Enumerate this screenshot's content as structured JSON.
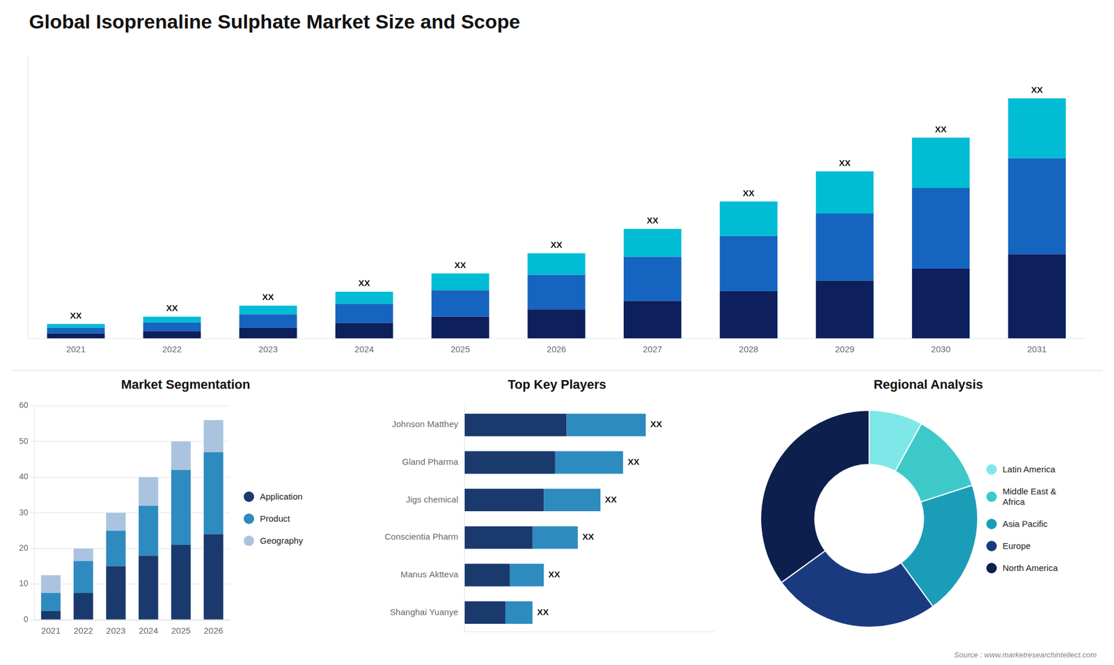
{
  "title": "Global Isoprenaline Sulphate Market Size and Scope",
  "annotations": [
    "Source : www.marketresearchintellect.com"
  ],
  "chart_data": [
    {
      "type": "bar",
      "stacked": true,
      "categories": [
        "2021",
        "2022",
        "2023",
        "2024",
        "2025",
        "2026",
        "2027",
        "2028",
        "2029",
        "2030",
        "2031"
      ],
      "series": [
        {
          "color": "#0d1f5c",
          "values": [
            1.0,
            1.5,
            2.2,
            3.2,
            4.5,
            6.0,
            7.8,
            9.8,
            12.0,
            14.5,
            17.5
          ]
        },
        {
          "color": "#1565c0",
          "values": [
            1.2,
            1.8,
            2.8,
            4.0,
            5.5,
            7.2,
            9.2,
            11.5,
            14.0,
            16.8,
            20.0
          ]
        },
        {
          "color": "#00bcd4",
          "values": [
            0.8,
            1.2,
            1.8,
            2.5,
            3.5,
            4.5,
            5.8,
            7.2,
            8.8,
            10.5,
            12.5
          ]
        }
      ],
      "ylim": [
        0,
        59
      ],
      "yticks": [],
      "tick_labels": "x",
      "grid": false,
      "annotations": [
        {
          "text": "XX",
          "x": "2021"
        },
        {
          "text": "XX",
          "x": "2022"
        },
        {
          "text": "XX",
          "x": "2023"
        },
        {
          "text": "XX",
          "x": "2024"
        },
        {
          "text": "XX",
          "x": "2025"
        },
        {
          "text": "XX",
          "x": "2026"
        },
        {
          "text": "XX",
          "x": "2027"
        },
        {
          "text": "XX",
          "x": "2028"
        },
        {
          "text": "XX",
          "x": "2029"
        },
        {
          "text": "XX",
          "x": "2030"
        },
        {
          "text": "XX",
          "x": "2031"
        }
      ]
    },
    {
      "type": "bar",
      "title": "Market Segmentation",
      "stacked": true,
      "categories": [
        "2021",
        "2022",
        "2023",
        "2024",
        "2025",
        "2026"
      ],
      "series": [
        {
          "name": "Application",
          "color": "#1a3a6e",
          "values": [
            2.5,
            7.5,
            15,
            18,
            21,
            24
          ]
        },
        {
          "name": "Product",
          "color": "#2e8bc0",
          "values": [
            5,
            9,
            10,
            14,
            21,
            23
          ]
        },
        {
          "name": "Geography",
          "color": "#aac4e0",
          "values": [
            5,
            3.5,
            5,
            8,
            8,
            9
          ]
        }
      ],
      "ylim": [
        0,
        60
      ],
      "yticks": [
        0,
        10,
        20,
        30,
        40,
        50,
        60
      ],
      "grid": true,
      "legend": "right"
    },
    {
      "type": "bar",
      "title": "Top Key Players",
      "orientation": "horizontal",
      "stacked": true,
      "categories": [
        "Johnson Matthey",
        "Gland Pharma",
        "Jigs chemical",
        "Conscientia Pharm",
        "Manus Aktteva",
        "Shanghai Yuanye"
      ],
      "series": [
        {
          "color": "#1a3a6e",
          "values": [
            4.5,
            4.0,
            3.5,
            3.0,
            2.0,
            1.8
          ]
        },
        {
          "color": "#2e8bc0",
          "values": [
            3.5,
            3.0,
            2.5,
            2.0,
            1.5,
            1.2
          ]
        }
      ],
      "xlim": [
        0,
        11
      ],
      "xticks": [],
      "tick_labels": "y",
      "grid": false,
      "annotations": [
        {
          "text": "XX",
          "y": "Johnson Matthey"
        },
        {
          "text": "XX",
          "y": "Gland Pharma"
        },
        {
          "text": "XX",
          "y": "Jigs chemical"
        },
        {
          "text": "XX",
          "y": "Conscientia Pharm"
        },
        {
          "text": "XX",
          "y": "Manus Aktteva"
        },
        {
          "text": "XX",
          "y": "Shanghai Yuanye"
        }
      ]
    },
    {
      "type": "doughnut",
      "title": "Regional Analysis",
      "categories": [
        "Latin America",
        "Middle East &\nAfrica",
        "Asia Pacific",
        "Europe",
        "North America"
      ],
      "values": [
        8,
        12,
        20,
        25,
        35
      ],
      "colors": [
        "#7ee8e8",
        "#3ec9c9",
        "#1b9db8",
        "#1a3a80",
        "#0d1f4d"
      ],
      "legend": "right"
    }
  ]
}
